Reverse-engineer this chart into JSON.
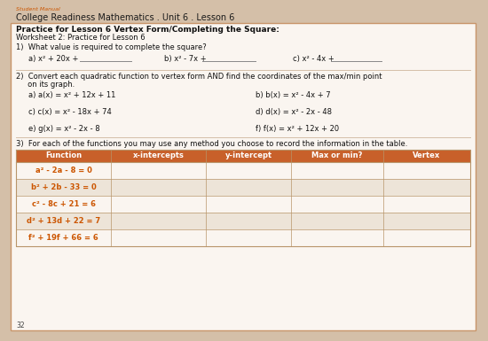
{
  "page_bg": "#d4bfa8",
  "box_bg": "#faf5f0",
  "box_border": "#c8956a",
  "header_bg": "#c8602a",
  "table_row_bg1": "#faf5f0",
  "table_row_bg2": "#ede4d8",
  "title_small_color": "#cc5500",
  "title_small": "Student Manual",
  "title_big": "College Readiness Mathematics . Unit 6 . Lesson 6",
  "box_title_bold": "Practice for Lesson 6 Vertex Form/Completing the Square:",
  "box_subtitle": "Worksheet 2: Practice for Lesson 6",
  "q1_text": "1)  What value is required to complete the square?",
  "q1a": "a) x² + 20x +",
  "q1b": "b) x² - 7x +",
  "q1c": "c) x² - 4x +",
  "q2_intro1": "2)  Convert each quadratic function to vertex form AND find the coordinates of the max/min point",
  "q2_intro2": "     on its graph.",
  "q2a": "a) a(x) = x² + 12x + 11",
  "q2b": "b) b(x) = x² - 4x + 7",
  "q2c": "c) c(x) = x² - 18x + 74",
  "q2d": "d) d(x) = x² - 2x - 48",
  "q2e": "e) g(x) = x² - 2x - 8",
  "q2f": "f) f(x) = x² + 12x + 20",
  "q3_text": "3)  For each of the functions you may use any method you choose to record the information in the table.",
  "table_headers": [
    "Function",
    "x-intercepts",
    "y-intercept",
    "Max or min?",
    "Vertex"
  ],
  "table_rows": [
    "a² - 2a - 8 = 0",
    "b² + 2b - 33 = 0",
    "c² - 8c + 21 = 6",
    "d² + 13d + 22 = 7",
    "f² + 19f + 66 = 6"
  ],
  "table_row_colors": [
    "#cc5500",
    "#cc5500",
    "#cc5500",
    "#cc5500",
    "#cc5500"
  ],
  "page_number": "32"
}
